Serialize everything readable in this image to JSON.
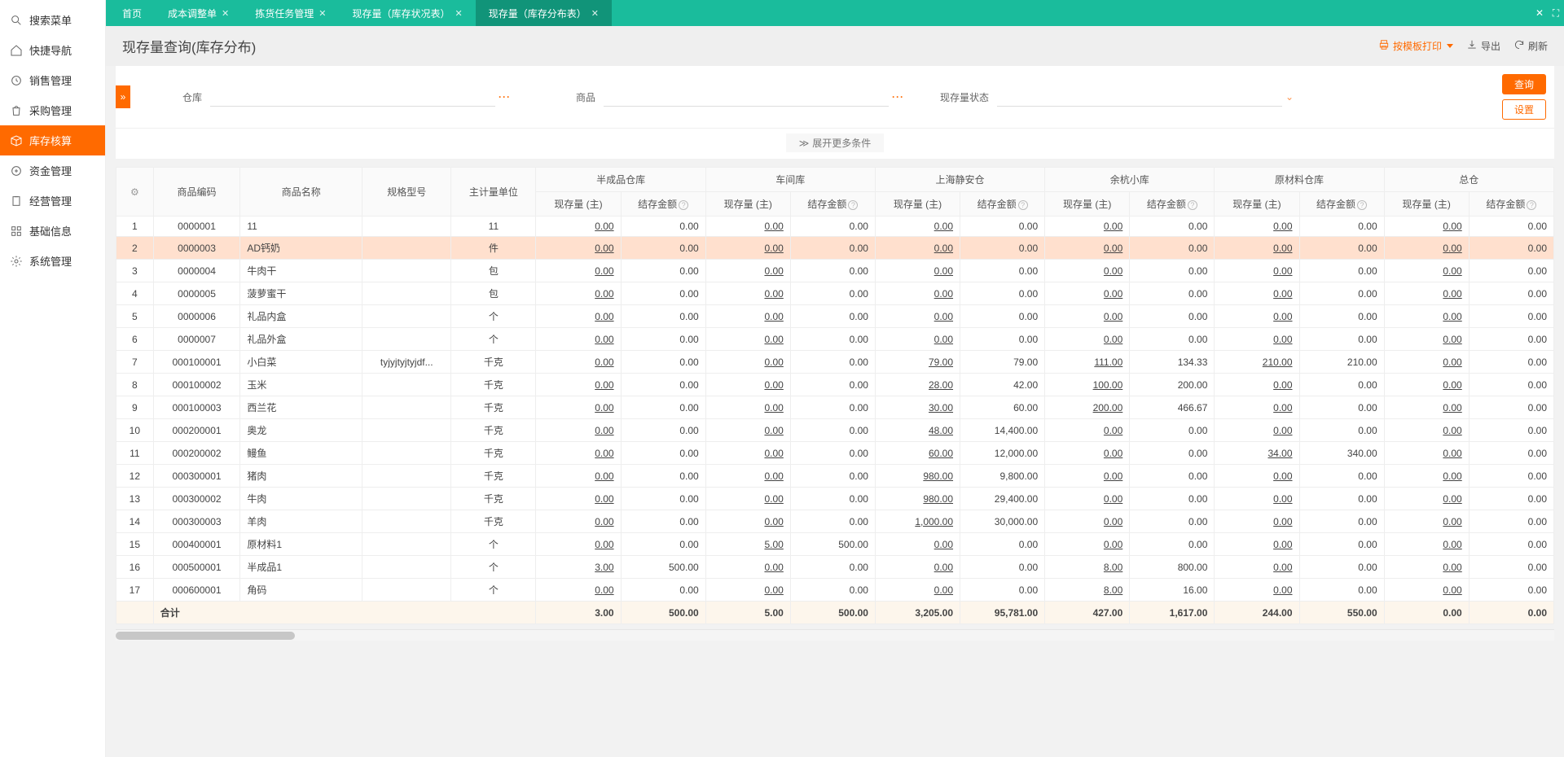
{
  "sidebar": {
    "items": [
      {
        "label": "搜索菜单",
        "icon": "search"
      },
      {
        "label": "快捷导航",
        "icon": "home"
      },
      {
        "label": "销售管理",
        "icon": "badge"
      },
      {
        "label": "采购管理",
        "icon": "bag"
      },
      {
        "label": "库存核算",
        "icon": "box",
        "active": true
      },
      {
        "label": "资金管理",
        "icon": "coin"
      },
      {
        "label": "经营管理",
        "icon": "clipboard"
      },
      {
        "label": "基础信息",
        "icon": "grid"
      },
      {
        "label": "系统管理",
        "icon": "gear"
      }
    ]
  },
  "tabs": [
    {
      "label": "首页",
      "closable": false
    },
    {
      "label": "成本调整单",
      "closable": true
    },
    {
      "label": "拣货任务管理",
      "closable": true
    },
    {
      "label": "现存量（库存状况表）",
      "closable": true
    },
    {
      "label": "现存量（库存分布表）",
      "closable": true,
      "active": true
    }
  ],
  "page": {
    "title": "现存量查询(库存分布)"
  },
  "toolbar": {
    "printTemplate": "按模板打印",
    "export": "导出",
    "refresh": "刷新"
  },
  "filters": {
    "warehouse": {
      "label": "仓库",
      "value": ""
    },
    "product": {
      "label": "商品",
      "value": ""
    },
    "stockStatus": {
      "label": "现存量状态",
      "value": ""
    },
    "queryBtn": "查询",
    "settingBtn": "设置",
    "expand": "展开更多条件"
  },
  "table": {
    "groups": [
      "半成品仓库",
      "车间库",
      "上海静安仓",
      "余杭小库",
      "原材料仓库",
      "总仓"
    ],
    "fixedHeaders": {
      "code": "商品编码",
      "name": "商品名称",
      "spec": "规格型号",
      "unit": "主计量单位"
    },
    "subHeaders": {
      "qty": "现存量 (主)",
      "amt": "结存金额"
    },
    "footerLabel": "合计",
    "rows": [
      {
        "idx": 1,
        "code": "0000001",
        "name": "11",
        "spec": "",
        "unit": "11",
        "v": [
          "0.00",
          "0.00",
          "0.00",
          "0.00",
          "0.00",
          "0.00",
          "0.00",
          "0.00",
          "0.00",
          "0.00",
          "0.00",
          "0.00"
        ]
      },
      {
        "idx": 2,
        "code": "0000003",
        "name": "AD钙奶",
        "spec": "",
        "unit": "件",
        "hl": true,
        "v": [
          "0.00",
          "0.00",
          "0.00",
          "0.00",
          "0.00",
          "0.00",
          "0.00",
          "0.00",
          "0.00",
          "0.00",
          "0.00",
          "0.00"
        ]
      },
      {
        "idx": 3,
        "code": "0000004",
        "name": "牛肉干",
        "spec": "",
        "unit": "包",
        "v": [
          "0.00",
          "0.00",
          "0.00",
          "0.00",
          "0.00",
          "0.00",
          "0.00",
          "0.00",
          "0.00",
          "0.00",
          "0.00",
          "0.00"
        ]
      },
      {
        "idx": 4,
        "code": "0000005",
        "name": "菠萝蜜干",
        "spec": "",
        "unit": "包",
        "v": [
          "0.00",
          "0.00",
          "0.00",
          "0.00",
          "0.00",
          "0.00",
          "0.00",
          "0.00",
          "0.00",
          "0.00",
          "0.00",
          "0.00"
        ]
      },
      {
        "idx": 5,
        "code": "0000006",
        "name": "礼品内盒",
        "spec": "",
        "unit": "个",
        "v": [
          "0.00",
          "0.00",
          "0.00",
          "0.00",
          "0.00",
          "0.00",
          "0.00",
          "0.00",
          "0.00",
          "0.00",
          "0.00",
          "0.00"
        ]
      },
      {
        "idx": 6,
        "code": "0000007",
        "name": "礼品外盒",
        "spec": "",
        "unit": "个",
        "v": [
          "0.00",
          "0.00",
          "0.00",
          "0.00",
          "0.00",
          "0.00",
          "0.00",
          "0.00",
          "0.00",
          "0.00",
          "0.00",
          "0.00"
        ]
      },
      {
        "idx": 7,
        "code": "000100001",
        "name": "小白菜",
        "spec": "tyjyjtyjtyjdf...",
        "unit": "千克",
        "v": [
          "0.00",
          "0.00",
          "0.00",
          "0.00",
          "79.00",
          "79.00",
          "111.00",
          "134.33",
          "210.00",
          "210.00",
          "0.00",
          "0.00"
        ]
      },
      {
        "idx": 8,
        "code": "000100002",
        "name": "玉米",
        "spec": "",
        "unit": "千克",
        "v": [
          "0.00",
          "0.00",
          "0.00",
          "0.00",
          "28.00",
          "42.00",
          "100.00",
          "200.00",
          "0.00",
          "0.00",
          "0.00",
          "0.00"
        ]
      },
      {
        "idx": 9,
        "code": "000100003",
        "name": "西兰花",
        "spec": "",
        "unit": "千克",
        "v": [
          "0.00",
          "0.00",
          "0.00",
          "0.00",
          "30.00",
          "60.00",
          "200.00",
          "466.67",
          "0.00",
          "0.00",
          "0.00",
          "0.00"
        ]
      },
      {
        "idx": 10,
        "code": "000200001",
        "name": "奥龙",
        "spec": "",
        "unit": "千克",
        "v": [
          "0.00",
          "0.00",
          "0.00",
          "0.00",
          "48.00",
          "14,400.00",
          "0.00",
          "0.00",
          "0.00",
          "0.00",
          "0.00",
          "0.00"
        ]
      },
      {
        "idx": 11,
        "code": "000200002",
        "name": "鳗鱼",
        "spec": "",
        "unit": "千克",
        "v": [
          "0.00",
          "0.00",
          "0.00",
          "0.00",
          "60.00",
          "12,000.00",
          "0.00",
          "0.00",
          "34.00",
          "340.00",
          "0.00",
          "0.00"
        ]
      },
      {
        "idx": 12,
        "code": "000300001",
        "name": "猪肉",
        "spec": "",
        "unit": "千克",
        "v": [
          "0.00",
          "0.00",
          "0.00",
          "0.00",
          "980.00",
          "9,800.00",
          "0.00",
          "0.00",
          "0.00",
          "0.00",
          "0.00",
          "0.00"
        ]
      },
      {
        "idx": 13,
        "code": "000300002",
        "name": "牛肉",
        "spec": "",
        "unit": "千克",
        "v": [
          "0.00",
          "0.00",
          "0.00",
          "0.00",
          "980.00",
          "29,400.00",
          "0.00",
          "0.00",
          "0.00",
          "0.00",
          "0.00",
          "0.00"
        ]
      },
      {
        "idx": 14,
        "code": "000300003",
        "name": "羊肉",
        "spec": "",
        "unit": "千克",
        "v": [
          "0.00",
          "0.00",
          "0.00",
          "0.00",
          "1,000.00",
          "30,000.00",
          "0.00",
          "0.00",
          "0.00",
          "0.00",
          "0.00",
          "0.00"
        ]
      },
      {
        "idx": 15,
        "code": "000400001",
        "name": "原材料1",
        "spec": "",
        "unit": "个",
        "v": [
          "0.00",
          "0.00",
          "5.00",
          "500.00",
          "0.00",
          "0.00",
          "0.00",
          "0.00",
          "0.00",
          "0.00",
          "0.00",
          "0.00"
        ]
      },
      {
        "idx": 16,
        "code": "000500001",
        "name": "半成品1",
        "spec": "",
        "unit": "个",
        "v": [
          "3.00",
          "500.00",
          "0.00",
          "0.00",
          "0.00",
          "0.00",
          "8.00",
          "800.00",
          "0.00",
          "0.00",
          "0.00",
          "0.00"
        ]
      },
      {
        "idx": 17,
        "code": "000600001",
        "name": "角码",
        "spec": "",
        "unit": "个",
        "v": [
          "0.00",
          "0.00",
          "0.00",
          "0.00",
          "0.00",
          "0.00",
          "8.00",
          "16.00",
          "0.00",
          "0.00",
          "0.00",
          "0.00"
        ]
      }
    ],
    "totals": [
      "3.00",
      "500.00",
      "5.00",
      "500.00",
      "3,205.00",
      "95,781.00",
      "427.00",
      "1,617.00",
      "244.00",
      "550.00",
      "0.00",
      "0.00"
    ]
  },
  "colors": {
    "primary": "#ff6a00",
    "teal": "#1abc9c",
    "tealDark": "#119479",
    "rowHighlight": "#ffe0ce",
    "footer": "#fdf6ec"
  }
}
